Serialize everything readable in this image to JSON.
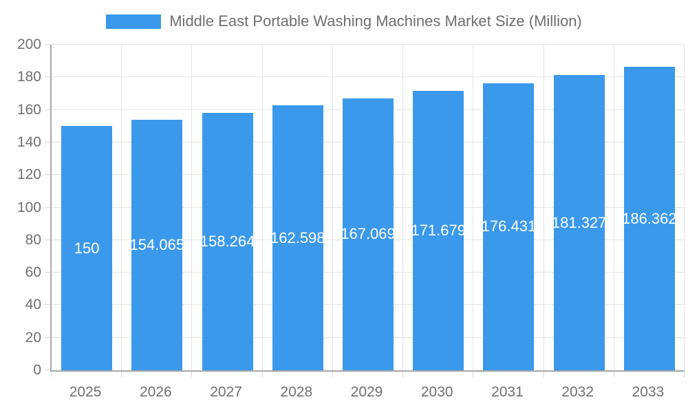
{
  "legend": {
    "label": "Middle East Portable Washing Machines Market Size (Million)"
  },
  "chart_data": {
    "type": "bar",
    "title": "Middle East Portable Washing Machines Market Size (Million)",
    "categories": [
      "2025",
      "2026",
      "2027",
      "2028",
      "2029",
      "2030",
      "2031",
      "2032",
      "2033"
    ],
    "values": [
      150,
      154.065,
      158.264,
      162.598,
      167.069,
      171.679,
      176.431,
      181.327,
      186.362
    ],
    "bar_labels": [
      "150",
      "154.065",
      "158.264",
      "162.598",
      "167.069",
      "171.679",
      "176.431",
      "181.327",
      "186.362"
    ],
    "xlabel": "",
    "ylabel": "",
    "ylim": [
      0,
      200
    ],
    "y_tick_step": 20,
    "y_tick_labels": [
      "0",
      "20",
      "40",
      "60",
      "80",
      "100",
      "120",
      "140",
      "160",
      "180",
      "200"
    ],
    "grid": true,
    "legend_position": "top",
    "colors": {
      "bar": "#3B99EC",
      "bar_label_text": "#FFFFFF",
      "grid_line": "#E4E4E4",
      "axis_line": "#A8A8A8",
      "tick_text": "#707070",
      "legend_text": "#6F6F6F"
    }
  }
}
